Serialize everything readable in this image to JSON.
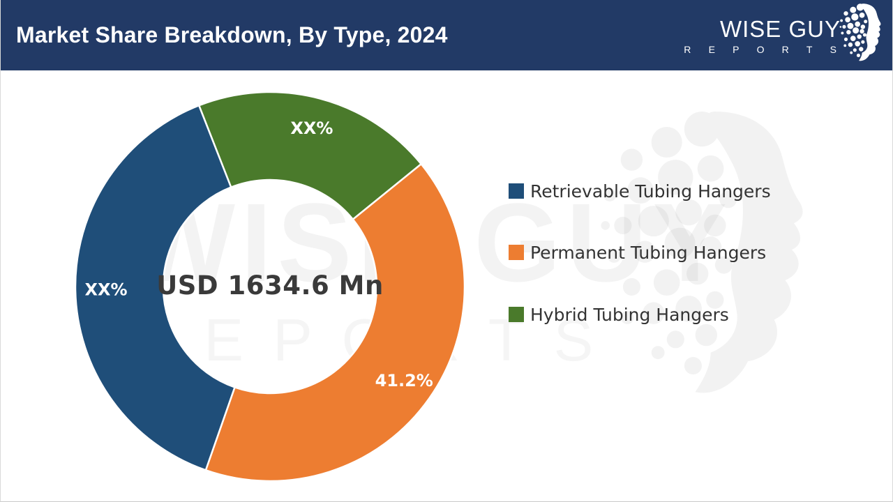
{
  "header": {
    "title": "Market Share Breakdown, By Type, 2024",
    "bg_color": "#223a66",
    "logo": {
      "line1": "WISE GUY",
      "line2": "REPORTS"
    }
  },
  "watermark": {
    "line1": "WISE GUY",
    "line2": "REPORTS"
  },
  "chart_data": {
    "type": "pie",
    "subtype": "donut",
    "title": "Market Share Breakdown, By Type, 2024",
    "center_label": "USD 1634.6 Mn",
    "start_angle_deg": 111.4,
    "direction": "clockwise",
    "inner_radius_ratio": 0.55,
    "segments": [
      {
        "label": "Hybrid Tubing Hangers",
        "value_pct": 20.1,
        "display_label": "XX%",
        "color": "#4a7a2b"
      },
      {
        "label": "Permanent Tubing Hangers",
        "value_pct": 41.2,
        "display_label": "41.2%",
        "color": "#ed7d31"
      },
      {
        "label": "Retrievable Tubing Hangers",
        "value_pct": 38.7,
        "display_label": "XX%",
        "color": "#1f4e79"
      }
    ],
    "legend": {
      "position": "right",
      "items": [
        {
          "label": "Retrievable Tubing Hangers",
          "color": "#1f4e79"
        },
        {
          "label": "Permanent Tubing Hangers",
          "color": "#ed7d31"
        },
        {
          "label": "Hybrid Tubing Hangers",
          "color": "#4a7a2b"
        }
      ]
    }
  }
}
